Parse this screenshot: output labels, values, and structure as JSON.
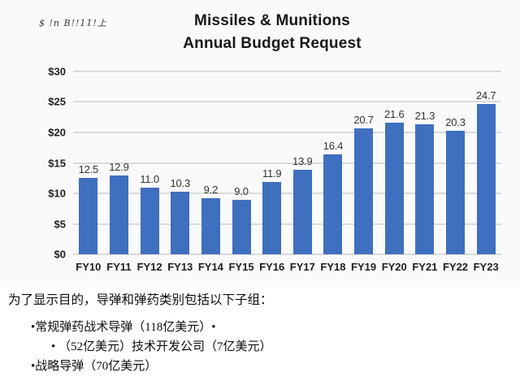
{
  "chart": {
    "units_note": "$ !n B!!11!上",
    "title_line1": "Missiles & Munitions",
    "title_line2": "Annual Budget Request"
  },
  "chart_data": {
    "type": "bar",
    "title": "Missiles & Munitions Annual Budget Request",
    "categories": [
      "FY10",
      "FY11",
      "FY12",
      "FY13",
      "FY14",
      "FY15",
      "FY16",
      "FY17",
      "FY18",
      "FY19",
      "FY20",
      "FY21",
      "FY22",
      "FY23"
    ],
    "values": [
      12.5,
      12.9,
      11.0,
      10.3,
      9.2,
      9.0,
      11.9,
      13.9,
      16.4,
      20.7,
      21.6,
      21.3,
      20.3,
      24.7
    ],
    "labels": [
      "12.5",
      "12.9",
      "11.0",
      "10.3",
      "9.2",
      "9.0",
      "11.9",
      "13.9",
      "16.4",
      "20.7",
      "21.6",
      "21.3",
      "20.3",
      "24.7"
    ],
    "xlabel": "",
    "ylabel": "",
    "ylim": [
      0,
      30
    ],
    "ytick_labels": [
      "$30",
      "$25",
      "$20",
      "$15",
      "$10",
      "$5",
      "$0"
    ],
    "grid": true,
    "legend": "none",
    "bar_color": "#3f6fbf",
    "gridline_color": "#dadada",
    "label_color": "#333333"
  },
  "notes": {
    "intro": "为了显示目的，导弹和弹药类别包括以下子组：",
    "bullets": [
      {
        "indent": 1,
        "text": "•常规弹药战术导弹（118亿美元）•"
      },
      {
        "indent": 2,
        "text": "• （52亿美元）技术开发公司（7亿美元）"
      },
      {
        "indent": 1,
        "text": "•战略导弹（70亿美元）"
      }
    ]
  }
}
